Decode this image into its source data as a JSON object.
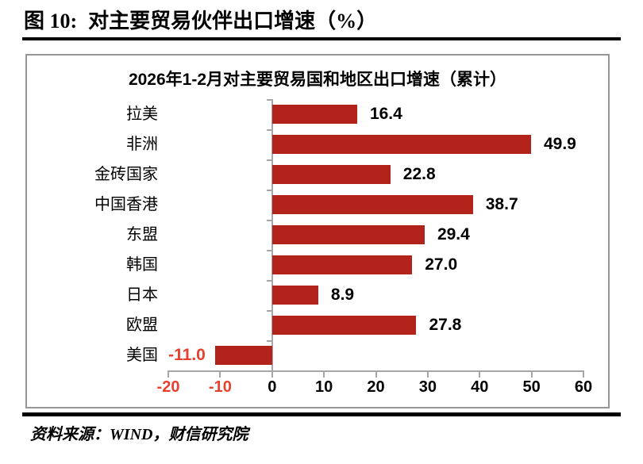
{
  "page": {
    "figure_label": "图 10:",
    "figure_title": "对主要贸易伙伴出口增速（%）",
    "source_text": "资料来源：WIND，财信研究院"
  },
  "chart_data": {
    "type": "bar",
    "orientation": "horizontal",
    "title": "2026年1-2月对主要贸易国和地区出口增速（累计）",
    "categories": [
      "拉美",
      "非洲",
      "金砖国家",
      "中国香港",
      "东盟",
      "韩国",
      "日本",
      "欧盟",
      "美国"
    ],
    "values": [
      16.4,
      49.9,
      22.8,
      38.7,
      29.4,
      27.0,
      8.9,
      27.8,
      -11.0
    ],
    "value_labels": [
      "16.4",
      "49.9",
      "22.8",
      "38.7",
      "29.4",
      "27.0",
      "8.9",
      "27.8",
      "-11.0"
    ],
    "xlabel": "",
    "ylabel": "",
    "xlim": [
      -20,
      60
    ],
    "x_ticks": [
      -20,
      -10,
      0,
      10,
      20,
      30,
      40,
      50,
      60
    ],
    "grid": false,
    "legend": false,
    "colors": {
      "bar": "#b2231b",
      "negative_text": "#e8402e",
      "axis": "#a6a6a6",
      "box_border": "#969696",
      "text": "#000000"
    }
  }
}
